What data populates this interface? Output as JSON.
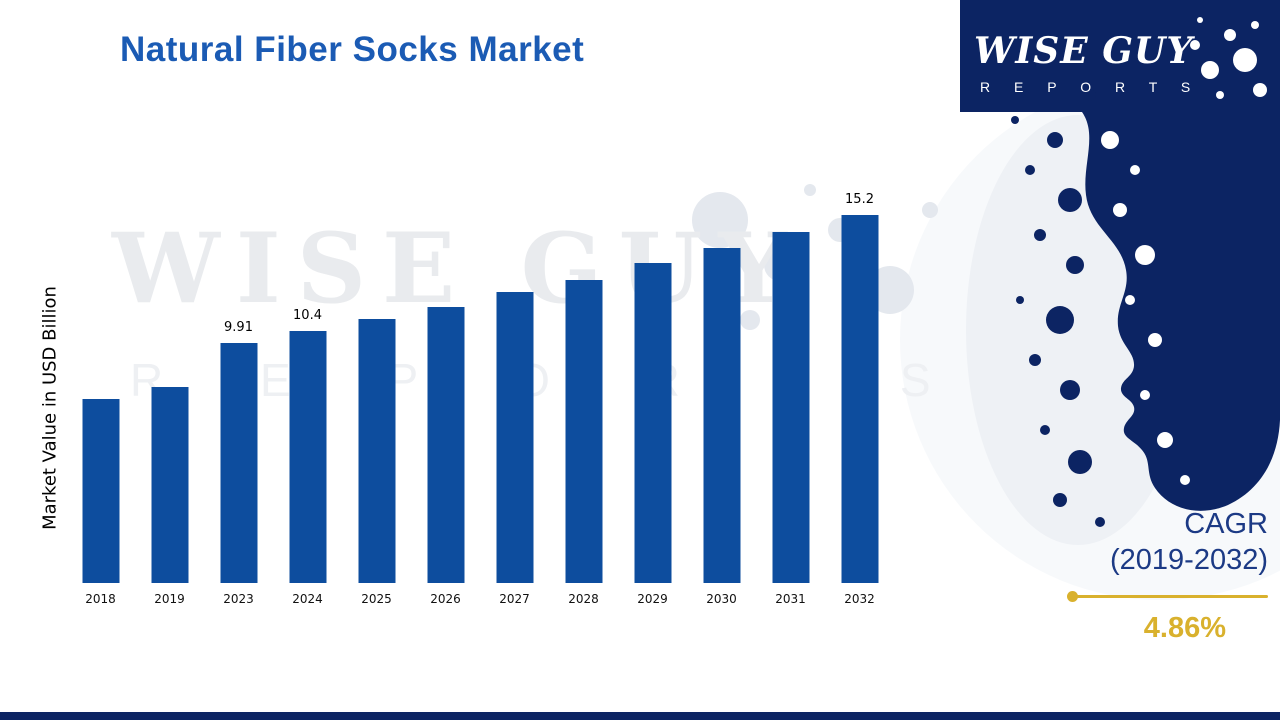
{
  "page": {
    "title": "Natural Fiber Socks Market"
  },
  "logo": {
    "name": "WISE GUY",
    "tagline": "R E P O R T S"
  },
  "watermark": {
    "line1": "WISE GUY",
    "line2": "R E P O R T S"
  },
  "cagr": {
    "heading": "CAGR",
    "range": "(2019-2032)",
    "value": "4.86%"
  },
  "colors": {
    "bar": "#0d4d9e",
    "navy": "#0c2463",
    "gold": "#d9b12d",
    "title": "#1b5bb4",
    "cagr_text": "#1c3a85"
  },
  "chart_data": {
    "type": "bar",
    "title": "Natural Fiber Socks Market",
    "ylabel": "Market Value in USD Billion",
    "xlabel": "",
    "categories": [
      "2018",
      "2019",
      "2023",
      "2024",
      "2025",
      "2026",
      "2027",
      "2028",
      "2029",
      "2030",
      "2031",
      "2032"
    ],
    "values": [
      7.6,
      8.1,
      9.91,
      10.4,
      10.9,
      11.4,
      12.0,
      12.5,
      13.2,
      13.8,
      14.5,
      15.2
    ],
    "value_labels": [
      "",
      "",
      "9.91",
      "10.4",
      "",
      "",
      "",
      "",
      "",
      "",
      "",
      "15.2"
    ],
    "ylim": [
      0,
      16.5
    ],
    "bar_color": "#0d4d9e",
    "grid": false,
    "legend": "none"
  }
}
